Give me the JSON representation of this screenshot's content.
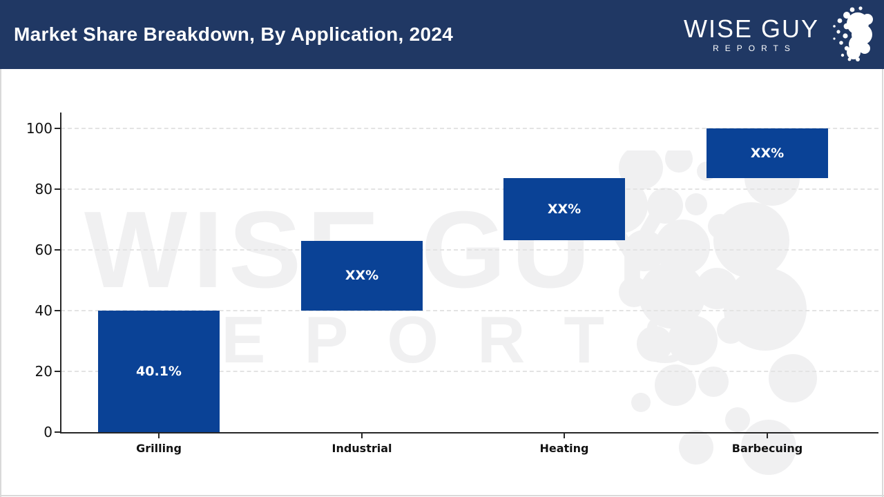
{
  "header": {
    "title": "Market Share Breakdown, By Application, 2024",
    "logo_line1": "WISE GUY",
    "logo_line2": "REPORTS"
  },
  "watermark": {
    "line1": "WISE GUY",
    "line2": "REPORTS"
  },
  "chart_data": {
    "type": "bar",
    "variant": "floating-segment-waterfall",
    "title": "Market Share Breakdown, By Application, 2024",
    "categories": [
      "Grilling",
      "Industrial",
      "Heating",
      "Barbecuing"
    ],
    "segments": [
      {
        "category": "Grilling",
        "start": 0,
        "end": 40.1,
        "label": "40.1%"
      },
      {
        "category": "Industrial",
        "start": 40.1,
        "end": 63.0,
        "label": "XX%"
      },
      {
        "category": "Heating",
        "start": 63.2,
        "end": 83.6,
        "label": "XX%"
      },
      {
        "category": "Barbecuing",
        "start": 83.6,
        "end": 100.0,
        "label": "XX%"
      }
    ],
    "y_ticks": [
      "0",
      "20",
      "40",
      "60",
      "80",
      "100"
    ],
    "ylim": [
      0,
      105
    ],
    "xlabel": "",
    "ylabel": "",
    "grid": "horizontal-dashed",
    "legend": "none",
    "colors": {
      "bar": "#0a4296",
      "header_bg": "#203864",
      "grid_line": "#e3e3e3",
      "axis": "#262626",
      "watermark": "#f0f0f1",
      "bar_label_text": "#ffffff"
    }
  }
}
